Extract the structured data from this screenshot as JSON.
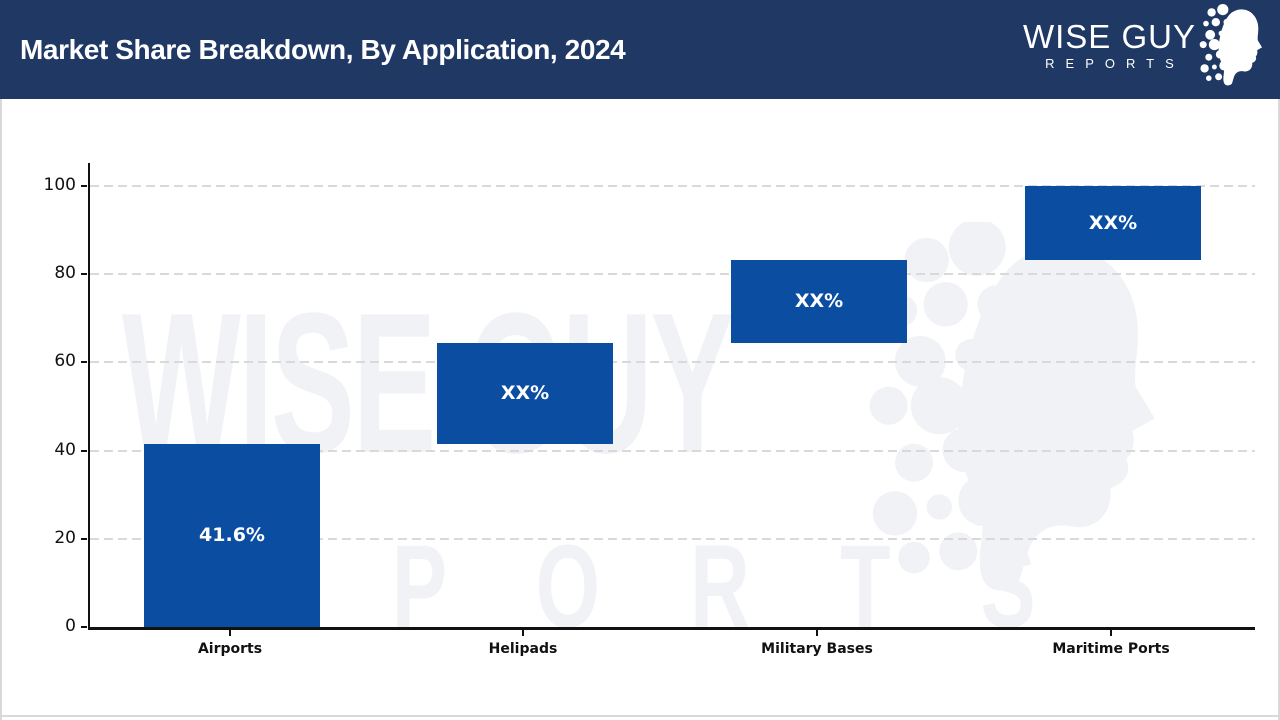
{
  "header": {
    "title": "Market Share Breakdown, By Application, 2024"
  },
  "logo": {
    "line1": "WISE GUY",
    "line2": "REPORTS",
    "head_icon": "dotted-face-profile"
  },
  "watermark": {
    "line1": "WISE GUY",
    "line2": "P O R T S",
    "head_icon": "dotted-face-profile"
  },
  "colors": {
    "header_bg": "#1f3864",
    "bar": "#0b4da1",
    "bar_label_text": "#ffffff",
    "axis": "#111111",
    "tick_text": "#111111",
    "gridline": "#d9d9d9",
    "watermark": "#f1f2f6",
    "page_bg": "#ffffff"
  },
  "chart_data": {
    "type": "bar",
    "subtype": "waterfall",
    "title": "Market Share Breakdown, By Application, 2024",
    "categories": [
      "Airports",
      "Helipads",
      "Military Bases",
      "Maritime Ports"
    ],
    "segments": [
      {
        "category": "Airports",
        "start": 0,
        "end": 41.6,
        "value": 41.6,
        "label": "41.6%"
      },
      {
        "category": "Helipads",
        "start": 41.6,
        "end": 64.5,
        "value": null,
        "label": "XX%"
      },
      {
        "category": "Military Bases",
        "start": 64.5,
        "end": 83.2,
        "value": null,
        "label": "XX%"
      },
      {
        "category": "Maritime Ports",
        "start": 83.2,
        "end": 100,
        "value": null,
        "label": "XX%"
      }
    ],
    "xlabel": "",
    "ylabel": "",
    "yticks": [
      0,
      20,
      40,
      60,
      80,
      100
    ],
    "ylim": [
      0,
      105
    ],
    "grid": "horizontal-dashed",
    "legend": "none"
  }
}
